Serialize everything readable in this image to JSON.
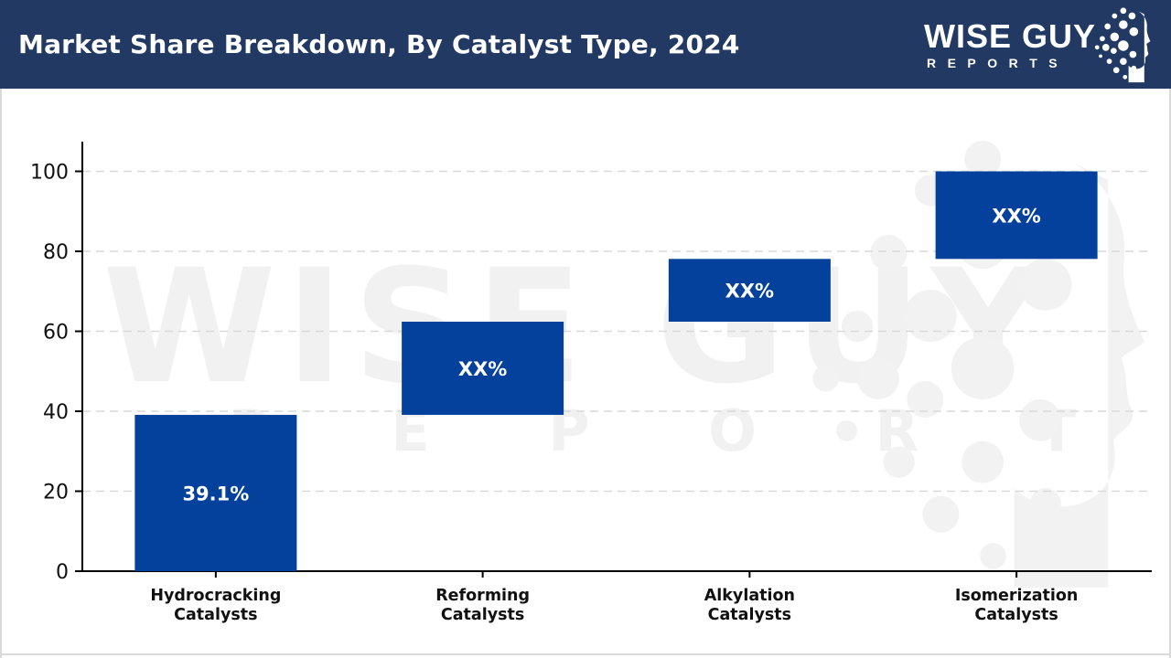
{
  "header": {
    "title": "Market Share Breakdown, By Catalyst Type, 2024",
    "bg_color": "#223a63",
    "logo": {
      "line1": "WISE GUY",
      "line2": "REPORTS"
    }
  },
  "watermark": {
    "line1": "WISE GUY",
    "line2": "R E P O R T S"
  },
  "chart_data": {
    "type": "bar",
    "subtype": "waterfall",
    "title": "Market Share Breakdown, By Catalyst Type, 2024",
    "xlabel": "",
    "ylabel": "",
    "categories": [
      [
        "Hydrocracking",
        "Catalysts"
      ],
      [
        "Reforming",
        "Catalysts"
      ],
      [
        "Alkylation",
        "Catalysts"
      ],
      [
        "Isomerization",
        "Catalysts"
      ]
    ],
    "series": [
      {
        "name": "Market Share (%)",
        "segments": [
          {
            "start": 0,
            "end": 39.1,
            "label": "39.1%"
          },
          {
            "start": 39.1,
            "end": 62.4,
            "label": "XX%"
          },
          {
            "start": 62.4,
            "end": 78.1,
            "label": "XX%"
          },
          {
            "start": 78.1,
            "end": 100,
            "label": "XX%"
          }
        ]
      }
    ],
    "yticks": [
      0,
      20,
      40,
      60,
      80,
      100
    ],
    "ylim": [
      0,
      107
    ],
    "grid": "horizontal-dashed",
    "legend": "none",
    "colors": {
      "bar": "#04419c",
      "bar_label": "#ffffff",
      "grid_line": "#d9d9d9",
      "axis": "#000000",
      "tick_label": "#111111"
    }
  }
}
